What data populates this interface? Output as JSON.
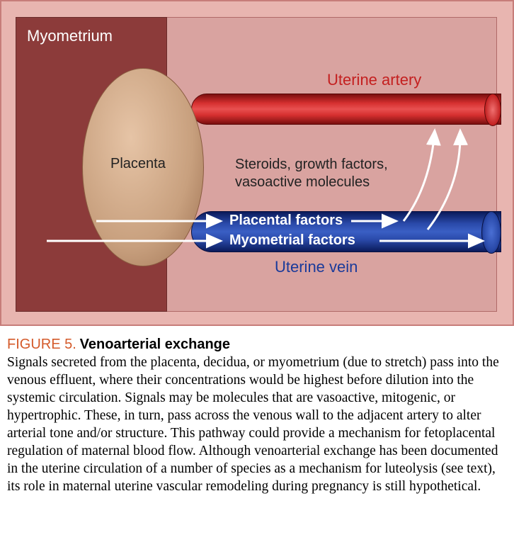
{
  "diagram": {
    "background_outer": "#e8b5b0",
    "background_inner": "#d9a3a0",
    "border_outer": "#c77d7a",
    "myometrium": {
      "label": "Myometrium",
      "fill": "#8c3b3a",
      "label_color": "#ffffff",
      "label_fontsize": 22
    },
    "placenta": {
      "label": "Placenta",
      "fill_gradient": [
        "#e6c4a6",
        "#c8a07e",
        "#9a6d4e"
      ],
      "label_fontsize": 20
    },
    "artery": {
      "label": "Uterine artery",
      "label_color": "#c42020",
      "fill_gradient": [
        "#7a0f0f",
        "#e85050",
        "#7a0f0f"
      ],
      "label_fontsize": 22
    },
    "vein": {
      "label": "Uterine vein",
      "label_color": "#1a3a9a",
      "fill_gradient": [
        "#0a1a5a",
        "#3a5fc4",
        "#0a1a5a"
      ],
      "label_fontsize": 22,
      "text1": "Placental factors",
      "text2": "Myometrial factors",
      "vein_text_color": "#ffffff"
    },
    "middle_text": "Steroids, growth factors,\nvasoactive molecules",
    "middle_fontsize": 20,
    "arrow_color": "#ffffff",
    "arrow_stroke_width": 3
  },
  "caption": {
    "figure_label": "FIGURE 5.",
    "figure_label_color": "#d45a2a",
    "title": "Venoarterial exchange",
    "body": "Signals secreted from the placenta, decidua, or myometrium (due to stretch) pass into the venous effluent, where their concentrations would be highest before dilution into the systemic circulation. Signals may be molecules that are vasoactive, mitogenic, or hypertrophic. These, in turn, pass across the venous wall to the adjacent artery to alter arterial tone and/or structure. This pathway could provide a mechanism for fetoplacental regulation of maternal blood flow. Although venoarterial exchange has been documented in the uterine circulation of a number of species as a mechanism for luteolysis (see text), its role in maternal uterine vascular remodeling during pregnancy is still hypothetical.",
    "body_fontsize": 19.5
  }
}
